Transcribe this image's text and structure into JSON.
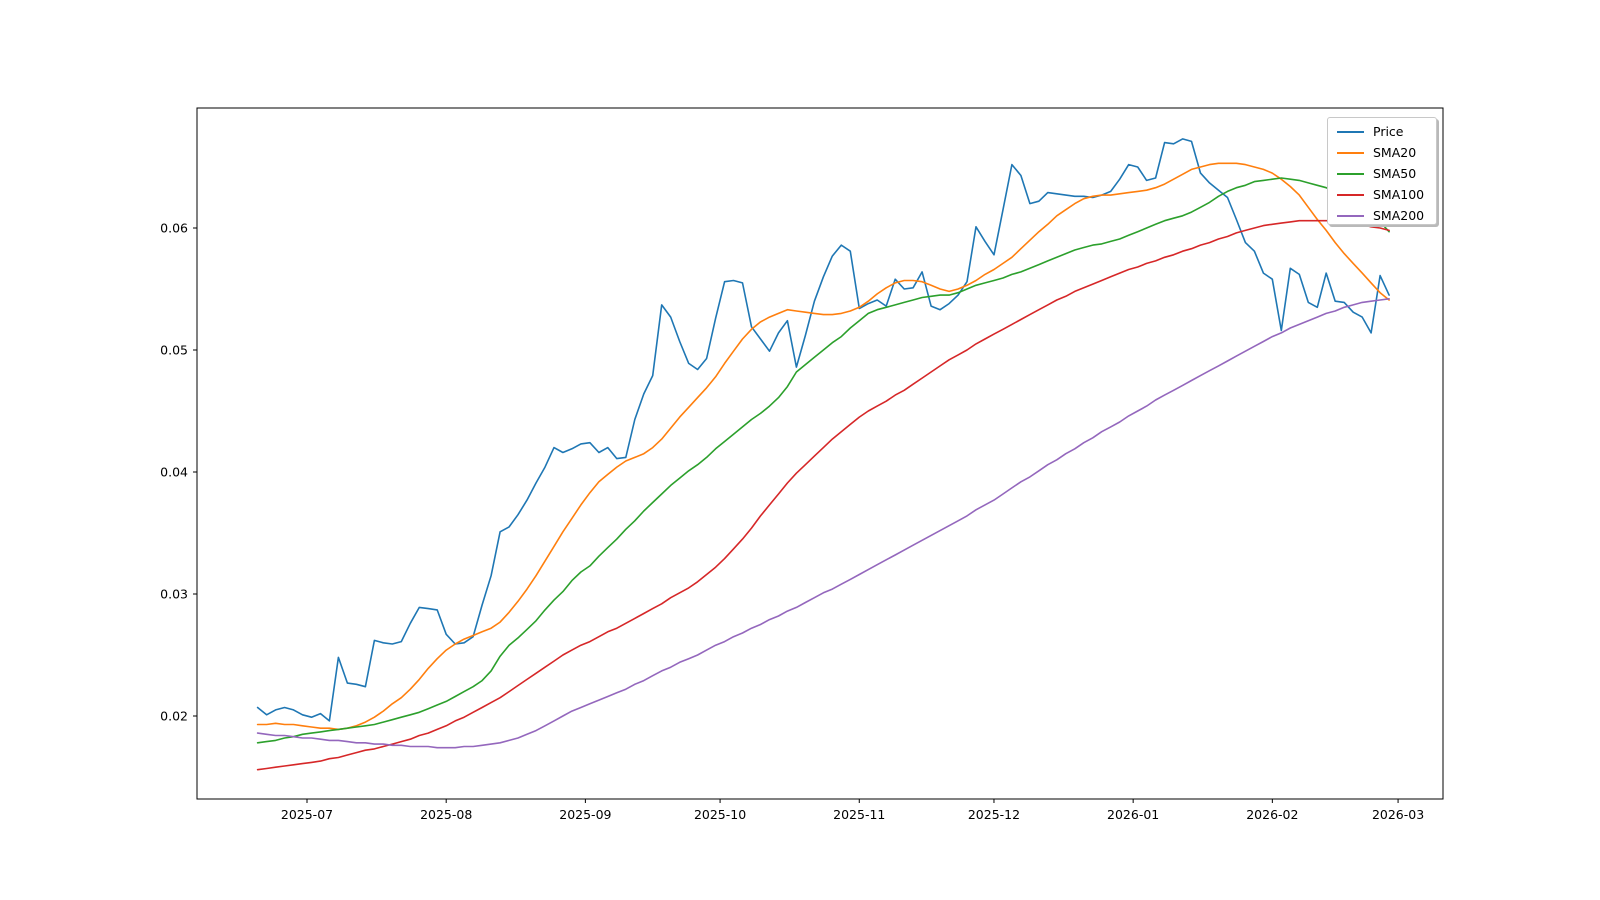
{
  "figure": {
    "background_color": "#ffffff",
    "plot_background_color": "#ffffff",
    "border_color": "#000000",
    "tick_color": "#000000",
    "label_color": "#000000"
  },
  "axes": {
    "x_ticks": [
      {
        "date": "2025-07-01",
        "label": "2025-07"
      },
      {
        "date": "2025-08-01",
        "label": "2025-08"
      },
      {
        "date": "2025-09-01",
        "label": "2025-09"
      },
      {
        "date": "2025-10-01",
        "label": "2025-10"
      },
      {
        "date": "2025-11-01",
        "label": "2025-11"
      },
      {
        "date": "2025-12-01",
        "label": "2025-12"
      },
      {
        "date": "2026-01-01",
        "label": "2026-01"
      },
      {
        "date": "2026-02-01",
        "label": "2026-02"
      },
      {
        "date": "2026-03-01",
        "label": "2026-03"
      }
    ],
    "y_ticks": [
      {
        "value": 0.02,
        "label": "0.02"
      },
      {
        "value": 0.03,
        "label": "0.03"
      },
      {
        "value": 0.04,
        "label": "0.04"
      },
      {
        "value": 0.05,
        "label": "0.05"
      },
      {
        "value": 0.06,
        "label": "0.06"
      }
    ]
  },
  "legend": {
    "position": "upper right",
    "entries": [
      {
        "label": "Price",
        "color": "#1f77b4"
      },
      {
        "label": "SMA20",
        "color": "#ff7f0e"
      },
      {
        "label": "SMA50",
        "color": "#2ca02c"
      },
      {
        "label": "SMA100",
        "color": "#d62728"
      },
      {
        "label": "SMA200",
        "color": "#9467bd"
      }
    ]
  },
  "chart_data": {
    "type": "line",
    "title": "",
    "xlabel": "",
    "ylabel": "",
    "grid": false,
    "legend_position": "upper right",
    "ylim": [
      0.0132,
      0.0698
    ],
    "xlim": [
      "2025-06-06",
      "2026-03-11"
    ],
    "x": [
      "2025-06-20",
      "2025-06-22",
      "2025-06-24",
      "2025-06-26",
      "2025-06-28",
      "2025-06-30",
      "2025-07-02",
      "2025-07-04",
      "2025-07-06",
      "2025-07-08",
      "2025-07-10",
      "2025-07-12",
      "2025-07-14",
      "2025-07-16",
      "2025-07-18",
      "2025-07-20",
      "2025-07-22",
      "2025-07-24",
      "2025-07-26",
      "2025-07-28",
      "2025-07-30",
      "2025-08-01",
      "2025-08-03",
      "2025-08-05",
      "2025-08-07",
      "2025-08-09",
      "2025-08-11",
      "2025-08-13",
      "2025-08-15",
      "2025-08-17",
      "2025-08-19",
      "2025-08-21",
      "2025-08-23",
      "2025-08-25",
      "2025-08-27",
      "2025-08-29",
      "2025-08-31",
      "2025-09-02",
      "2025-09-04",
      "2025-09-06",
      "2025-09-08",
      "2025-09-10",
      "2025-09-12",
      "2025-09-14",
      "2025-09-16",
      "2025-09-18",
      "2025-09-20",
      "2025-09-22",
      "2025-09-24",
      "2025-09-26",
      "2025-09-28",
      "2025-09-30",
      "2025-10-02",
      "2025-10-04",
      "2025-10-06",
      "2025-10-08",
      "2025-10-10",
      "2025-10-12",
      "2025-10-14",
      "2025-10-16",
      "2025-10-18",
      "2025-10-20",
      "2025-10-22",
      "2025-10-24",
      "2025-10-26",
      "2025-10-28",
      "2025-10-30",
      "2025-11-01",
      "2025-11-03",
      "2025-11-05",
      "2025-11-07",
      "2025-11-09",
      "2025-11-11",
      "2025-11-13",
      "2025-11-15",
      "2025-11-17",
      "2025-11-19",
      "2025-11-21",
      "2025-11-23",
      "2025-11-25",
      "2025-11-27",
      "2025-11-29",
      "2025-12-01",
      "2025-12-03",
      "2025-12-05",
      "2025-12-07",
      "2025-12-09",
      "2025-12-11",
      "2025-12-13",
      "2025-12-15",
      "2025-12-17",
      "2025-12-19",
      "2025-12-21",
      "2025-12-23",
      "2025-12-25",
      "2025-12-27",
      "2025-12-29",
      "2025-12-31",
      "2026-01-02",
      "2026-01-04",
      "2026-01-06",
      "2026-01-08",
      "2026-01-10",
      "2026-01-12",
      "2026-01-14",
      "2026-01-16",
      "2026-01-18",
      "2026-01-20",
      "2026-01-22",
      "2026-01-24",
      "2026-01-26",
      "2026-01-28",
      "2026-01-30",
      "2026-02-01",
      "2026-02-03",
      "2026-02-05",
      "2026-02-07",
      "2026-02-09",
      "2026-02-11",
      "2026-02-13",
      "2026-02-15",
      "2026-02-17",
      "2026-02-19",
      "2026-02-21",
      "2026-02-23",
      "2026-02-25",
      "2026-02-27"
    ],
    "series": [
      {
        "name": "Price",
        "color": "#1f77b4",
        "values": [
          0.0207,
          0.0201,
          0.0205,
          0.0207,
          0.0205,
          0.0201,
          0.0199,
          0.0202,
          0.0196,
          0.0248,
          0.0227,
          0.0226,
          0.0224,
          0.0262,
          0.026,
          0.0259,
          0.0261,
          0.0276,
          0.0289,
          0.0288,
          0.0287,
          0.0267,
          0.0259,
          0.026,
          0.0265,
          0.0291,
          0.0315,
          0.0351,
          0.0355,
          0.0365,
          0.0377,
          0.0391,
          0.0404,
          0.042,
          0.0416,
          0.0419,
          0.0423,
          0.0424,
          0.0416,
          0.042,
          0.0411,
          0.0412,
          0.0443,
          0.0464,
          0.0479,
          0.0537,
          0.0527,
          0.0507,
          0.0489,
          0.0484,
          0.0493,
          0.0526,
          0.0556,
          0.0557,
          0.0555,
          0.0519,
          0.0509,
          0.0499,
          0.0514,
          0.0524,
          0.0486,
          0.0512,
          0.054,
          0.056,
          0.0577,
          0.0586,
          0.0581,
          0.0534,
          0.0538,
          0.0541,
          0.0536,
          0.0558,
          0.055,
          0.0551,
          0.0564,
          0.0536,
          0.0533,
          0.0538,
          0.0545,
          0.0556,
          0.0601,
          0.0589,
          0.0578,
          0.0615,
          0.0652,
          0.0643,
          0.062,
          0.0622,
          0.0629,
          0.0628,
          0.0627,
          0.0626,
          0.0626,
          0.0625,
          0.0627,
          0.063,
          0.064,
          0.0652,
          0.065,
          0.0639,
          0.0641,
          0.067,
          0.0669,
          0.0673,
          0.0671,
          0.0645,
          0.0637,
          0.0631,
          0.0625,
          0.0607,
          0.0588,
          0.0581,
          0.0563,
          0.0558,
          0.0516,
          0.0567,
          0.0562,
          0.0539,
          0.0535,
          0.0563,
          0.054,
          0.0539,
          0.0531,
          0.0527,
          0.0514,
          0.0561,
          0.0545
        ]
      },
      {
        "name": "SMA20",
        "color": "#ff7f0e",
        "values": [
          0.0193,
          0.0193,
          0.0194,
          0.0193,
          0.0193,
          0.0192,
          0.0191,
          0.019,
          0.019,
          0.0189,
          0.019,
          0.0192,
          0.0195,
          0.0199,
          0.0204,
          0.021,
          0.0215,
          0.0222,
          0.023,
          0.0239,
          0.0247,
          0.0254,
          0.0259,
          0.0263,
          0.0266,
          0.0269,
          0.0272,
          0.0277,
          0.0285,
          0.0294,
          0.0304,
          0.0315,
          0.0327,
          0.0339,
          0.0351,
          0.0362,
          0.0373,
          0.0383,
          0.0392,
          0.0398,
          0.0404,
          0.0409,
          0.0412,
          0.0415,
          0.042,
          0.0427,
          0.0436,
          0.0445,
          0.0453,
          0.0461,
          0.0469,
          0.0478,
          0.0489,
          0.0499,
          0.0509,
          0.0517,
          0.0523,
          0.0527,
          0.053,
          0.0533,
          0.0532,
          0.0531,
          0.053,
          0.0529,
          0.0529,
          0.053,
          0.0532,
          0.0535,
          0.054,
          0.0546,
          0.0551,
          0.0555,
          0.0557,
          0.0557,
          0.0556,
          0.0553,
          0.055,
          0.0548,
          0.055,
          0.0553,
          0.0557,
          0.0562,
          0.0566,
          0.0571,
          0.0576,
          0.0583,
          0.059,
          0.0597,
          0.0603,
          0.061,
          0.0615,
          0.062,
          0.0624,
          0.0626,
          0.0627,
          0.0627,
          0.0628,
          0.0629,
          0.063,
          0.0631,
          0.0633,
          0.0636,
          0.064,
          0.0644,
          0.0648,
          0.065,
          0.0652,
          0.0653,
          0.0653,
          0.0653,
          0.0652,
          0.065,
          0.0648,
          0.0645,
          0.064,
          0.0634,
          0.0627,
          0.0617,
          0.0607,
          0.0598,
          0.0588,
          0.0579,
          0.0571,
          0.0563,
          0.0555,
          0.0547,
          0.0541
        ]
      },
      {
        "name": "SMA50",
        "color": "#2ca02c",
        "values": [
          0.0178,
          0.0179,
          0.018,
          0.0182,
          0.0183,
          0.0185,
          0.0186,
          0.0187,
          0.0188,
          0.0189,
          0.019,
          0.0191,
          0.0192,
          0.0193,
          0.0195,
          0.0197,
          0.0199,
          0.0201,
          0.0203,
          0.0206,
          0.0209,
          0.0212,
          0.0216,
          0.022,
          0.0224,
          0.0229,
          0.0237,
          0.0249,
          0.0258,
          0.0264,
          0.0271,
          0.0278,
          0.0287,
          0.0295,
          0.0302,
          0.0311,
          0.0318,
          0.0323,
          0.0331,
          0.0338,
          0.0345,
          0.0353,
          0.036,
          0.0368,
          0.0375,
          0.0382,
          0.0389,
          0.0395,
          0.0401,
          0.0406,
          0.0412,
          0.0419,
          0.0425,
          0.0431,
          0.0437,
          0.0443,
          0.0448,
          0.0454,
          0.0461,
          0.047,
          0.0482,
          0.0488,
          0.0494,
          0.05,
          0.0506,
          0.0511,
          0.0518,
          0.0524,
          0.053,
          0.0533,
          0.0535,
          0.0537,
          0.0539,
          0.0541,
          0.0543,
          0.0544,
          0.0545,
          0.0545,
          0.0547,
          0.055,
          0.0553,
          0.0555,
          0.0557,
          0.0559,
          0.0562,
          0.0564,
          0.0567,
          0.057,
          0.0573,
          0.0576,
          0.0579,
          0.0582,
          0.0584,
          0.0586,
          0.0587,
          0.0589,
          0.0591,
          0.0594,
          0.0597,
          0.06,
          0.0603,
          0.0606,
          0.0608,
          0.061,
          0.0613,
          0.0617,
          0.0621,
          0.0626,
          0.063,
          0.0633,
          0.0635,
          0.0638,
          0.0639,
          0.064,
          0.0641,
          0.064,
          0.0639,
          0.0637,
          0.0635,
          0.0633,
          0.063,
          0.0627,
          0.0622,
          0.0618,
          0.0612,
          0.0605,
          0.0597
        ]
      },
      {
        "name": "SMA100",
        "color": "#d62728",
        "values": [
          0.0156,
          0.0157,
          0.0158,
          0.0159,
          0.016,
          0.0161,
          0.0162,
          0.0163,
          0.0165,
          0.0166,
          0.0168,
          0.017,
          0.0172,
          0.0173,
          0.0175,
          0.0177,
          0.0179,
          0.0181,
          0.0184,
          0.0186,
          0.0189,
          0.0192,
          0.0196,
          0.0199,
          0.0203,
          0.0207,
          0.0211,
          0.0215,
          0.022,
          0.0225,
          0.023,
          0.0235,
          0.024,
          0.0245,
          0.025,
          0.0254,
          0.0258,
          0.0261,
          0.0265,
          0.0269,
          0.0272,
          0.0276,
          0.028,
          0.0284,
          0.0288,
          0.0292,
          0.0297,
          0.0301,
          0.0305,
          0.031,
          0.0316,
          0.0322,
          0.0329,
          0.0337,
          0.0345,
          0.0354,
          0.0364,
          0.0373,
          0.0382,
          0.0391,
          0.0399,
          0.0406,
          0.0413,
          0.042,
          0.0427,
          0.0433,
          0.0439,
          0.0445,
          0.045,
          0.0454,
          0.0458,
          0.0463,
          0.0467,
          0.0472,
          0.0477,
          0.0482,
          0.0487,
          0.0492,
          0.0496,
          0.05,
          0.0505,
          0.0509,
          0.0513,
          0.0517,
          0.0521,
          0.0525,
          0.0529,
          0.0533,
          0.0537,
          0.0541,
          0.0544,
          0.0548,
          0.0551,
          0.0554,
          0.0557,
          0.056,
          0.0563,
          0.0566,
          0.0568,
          0.0571,
          0.0573,
          0.0576,
          0.0578,
          0.0581,
          0.0583,
          0.0586,
          0.0588,
          0.0591,
          0.0593,
          0.0596,
          0.0598,
          0.06,
          0.0602,
          0.0603,
          0.0604,
          0.0605,
          0.0606,
          0.0606,
          0.0606,
          0.0606,
          0.0606,
          0.0605,
          0.0604,
          0.0603,
          0.0601,
          0.06,
          0.0598
        ]
      },
      {
        "name": "SMA200",
        "color": "#9467bd",
        "values": [
          0.0186,
          0.0185,
          0.0184,
          0.0184,
          0.0183,
          0.0182,
          0.0182,
          0.0181,
          0.018,
          0.018,
          0.0179,
          0.0178,
          0.0178,
          0.0177,
          0.0177,
          0.0176,
          0.0176,
          0.0175,
          0.0175,
          0.0175,
          0.0174,
          0.0174,
          0.0174,
          0.0175,
          0.0175,
          0.0176,
          0.0177,
          0.0178,
          0.018,
          0.0182,
          0.0185,
          0.0188,
          0.0192,
          0.0196,
          0.02,
          0.0204,
          0.0207,
          0.021,
          0.0213,
          0.0216,
          0.0219,
          0.0222,
          0.0226,
          0.0229,
          0.0233,
          0.0237,
          0.024,
          0.0244,
          0.0247,
          0.025,
          0.0254,
          0.0258,
          0.0261,
          0.0265,
          0.0268,
          0.0272,
          0.0275,
          0.0279,
          0.0282,
          0.0286,
          0.0289,
          0.0293,
          0.0297,
          0.0301,
          0.0304,
          0.0308,
          0.0312,
          0.0316,
          0.032,
          0.0324,
          0.0328,
          0.0332,
          0.0336,
          0.034,
          0.0344,
          0.0348,
          0.0352,
          0.0356,
          0.036,
          0.0364,
          0.0369,
          0.0373,
          0.0377,
          0.0382,
          0.0387,
          0.0392,
          0.0396,
          0.0401,
          0.0406,
          0.041,
          0.0415,
          0.0419,
          0.0424,
          0.0428,
          0.0433,
          0.0437,
          0.0441,
          0.0446,
          0.045,
          0.0454,
          0.0459,
          0.0463,
          0.0467,
          0.0471,
          0.0475,
          0.0479,
          0.0483,
          0.0487,
          0.0491,
          0.0495,
          0.0499,
          0.0503,
          0.0507,
          0.0511,
          0.0514,
          0.0518,
          0.0521,
          0.0524,
          0.0527,
          0.053,
          0.0532,
          0.0535,
          0.0537,
          0.0539,
          0.054,
          0.0541,
          0.0542
        ]
      }
    ]
  }
}
